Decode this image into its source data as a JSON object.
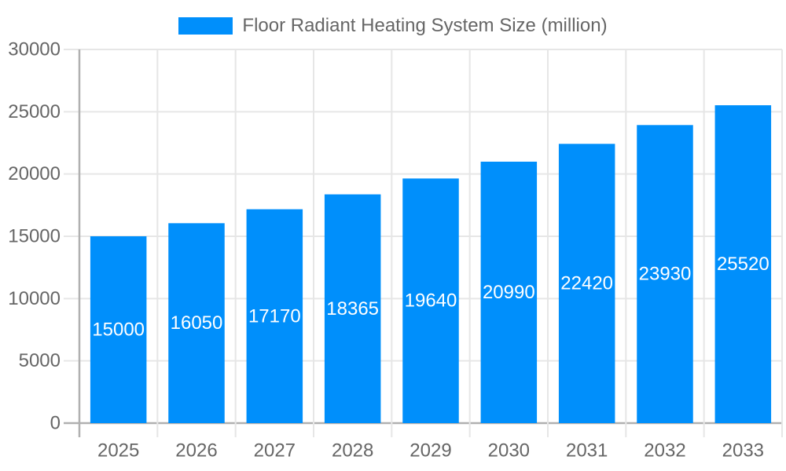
{
  "chart_data": {
    "type": "bar",
    "title": "Floor Radiant Heating System Size (million)",
    "legend_position": "top",
    "categories": [
      "2025",
      "2026",
      "2027",
      "2028",
      "2029",
      "2030",
      "2031",
      "2032",
      "2033"
    ],
    "series": [
      {
        "name": "Floor Radiant Heating System Size (million)",
        "values": [
          15000,
          16050,
          17170,
          18365,
          19640,
          20990,
          22420,
          23930,
          25520
        ]
      }
    ],
    "xlabel": "",
    "ylabel": "",
    "ylim": [
      0,
      30000
    ],
    "yticks": [
      0,
      5000,
      10000,
      15000,
      20000,
      25000,
      30000
    ],
    "grid": true,
    "value_labels_inside_bars": true,
    "colors": {
      "bar": "#008FFB",
      "grid_line": "#e6e6e6",
      "axis_line": "#b0b0b0",
      "tick_text": "#666666",
      "value_label_text": "#ffffff",
      "background": "#ffffff"
    }
  }
}
